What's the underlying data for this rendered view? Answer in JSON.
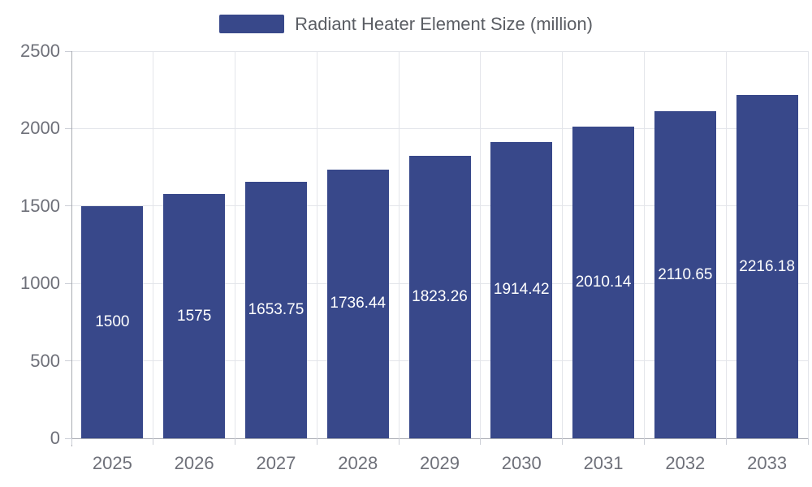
{
  "legend": {
    "label": "Radiant Heater Element Size (million)"
  },
  "colors": {
    "bar": "#38488A",
    "value_label": "#FFFFFF",
    "legend_text": "#5A5D63",
    "axis_text": "#6E7079",
    "grid_line": "#E3E5EA",
    "axis_line": "#A8ABB2",
    "tick_line": "#CBCED6",
    "background": "#FFFFFF"
  },
  "chart_data": {
    "type": "bar",
    "title": "Radiant Heater Element Size (million)",
    "categories": [
      "2025",
      "2026",
      "2027",
      "2028",
      "2029",
      "2030",
      "2031",
      "2032",
      "2033"
    ],
    "values": [
      1500,
      1575,
      1653.75,
      1736.44,
      1823.26,
      1914.42,
      2010.14,
      2110.65,
      2216.18
    ],
    "value_labels": [
      "1500",
      "1575",
      "1653.75",
      "1736.44",
      "1823.26",
      "1914.42",
      "2010.14",
      "2110.65",
      "2216.18"
    ],
    "series_name": "Radiant Heater Element Size (million)",
    "xlabel": "",
    "ylabel": "",
    "ylim": [
      0,
      2500
    ],
    "yticks": [
      0,
      500,
      1000,
      1500,
      2000,
      2500
    ],
    "grid": true,
    "legend_position": "top"
  }
}
